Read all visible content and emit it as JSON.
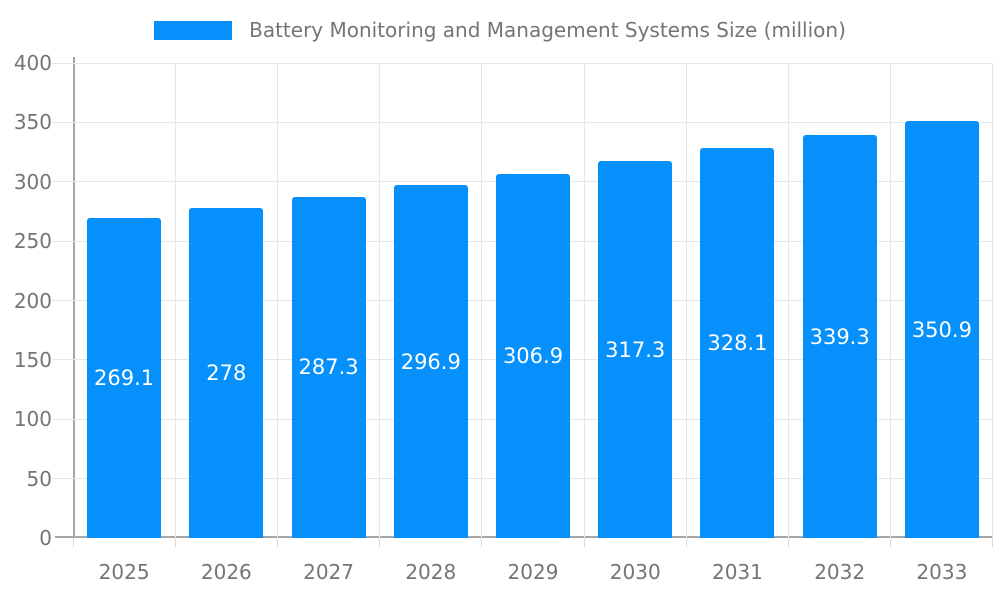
{
  "chart_data": {
    "type": "bar",
    "title": "Battery Monitoring and Management Systems Size (million)",
    "legend": {
      "label": "Battery Monitoring and Management Systems Size (million)",
      "position": "top-center",
      "swatch_color": "#0590fb"
    },
    "categories": [
      "2025",
      "2026",
      "2027",
      "2028",
      "2029",
      "2030",
      "2031",
      "2032",
      "2033"
    ],
    "series": [
      {
        "name": "Battery Monitoring and Management Systems Size (million)",
        "values": [
          269.1,
          278,
          287.3,
          296.9,
          306.9,
          317.3,
          328.1,
          339.3,
          350.9
        ],
        "value_labels": [
          "269.1",
          "278",
          "287.3",
          "296.9",
          "306.9",
          "317.3",
          "328.1",
          "339.3",
          "350.9"
        ]
      }
    ],
    "xlabel": "",
    "ylabel": "",
    "ylim": [
      0,
      400
    ],
    "yticks": [
      0,
      50,
      100,
      150,
      200,
      250,
      300,
      350,
      400
    ],
    "grid": true,
    "value_label_position": "inside-center",
    "colors": {
      "bar": "#0590fb",
      "bar_value_label": "#ffffff",
      "axis_line": "#a6a6a6",
      "gridline": "#e6e6e6",
      "axis_tick": "#d9d9d9",
      "axis_text": "#757575"
    }
  }
}
